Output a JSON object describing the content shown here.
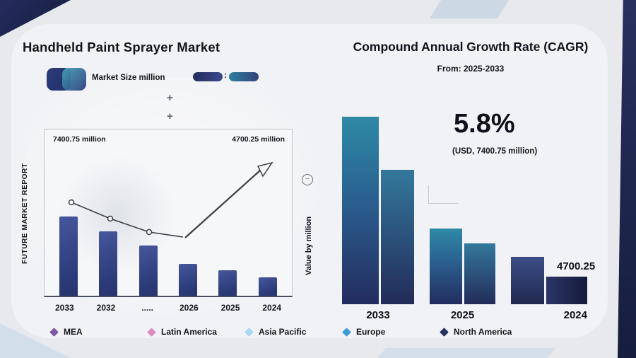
{
  "page": {
    "background": "#e7e9ed",
    "accent_navy": "#1b2350",
    "accent_teal": "#2e8aa6"
  },
  "decor": {
    "plus": "+",
    "minus": "−"
  },
  "left_section": {
    "title": "Handheld Paint Sprayer Market",
    "legend_label": "Market Size million",
    "pill_separator": ":",
    "chart": {
      "top_left_label": "7400.75 million",
      "top_right_label": "4700.25 million",
      "y_axis_label": "FUTURE MARKET REPORT"
    }
  },
  "right_section": {
    "title": "Compound Annual Growth Rate (CAGR)",
    "subtitle": "From: 2025-2033",
    "cagr_value": "5.8%",
    "cagr_note": "(USD, 7400.75 million)",
    "y_axis_label": "Value by million",
    "end_value_label": "4700.25"
  },
  "footer_legend": [
    {
      "label": "MEA",
      "color": "#7d58a6"
    },
    {
      "label": "Latin America",
      "color": "#d88ec0"
    },
    {
      "label": "Asia Pacific",
      "color": "#a6d9ef"
    },
    {
      "label": "Europe",
      "color": "#3e9bd8"
    },
    {
      "label": "North America",
      "color": "#28335f"
    }
  ],
  "chart_data": [
    {
      "type": "bar",
      "title": "Handheld Paint Sprayer Market",
      "series_label": "Market Size million",
      "categories": [
        "2033",
        "2032",
        ".....",
        "2026",
        "2025",
        "2024"
      ],
      "values": [
        7400.75,
        6750,
        6100,
        5300,
        5000,
        4700.25
      ],
      "unit": "million",
      "ylabel": "FUTURE MARKET REPORT",
      "annotations": [
        {
          "text": "7400.75 million",
          "position": "top-left"
        },
        {
          "text": "4700.25 million",
          "position": "top-right"
        }
      ],
      "trend": {
        "type": "line-with-markers-then-rising-arrow",
        "marker_categories": [
          "2033",
          "2032",
          "....."
        ]
      },
      "grid": false,
      "legend_position": "none"
    },
    {
      "type": "bar",
      "title": "Compound Annual Growth Rate (CAGR)",
      "subtitle": "From: 2025-2033",
      "cagr": "5.8%",
      "cagr_note": "(USD, 7400.75 million)",
      "categories": [
        "2033",
        "2025",
        "2024"
      ],
      "series": [
        {
          "name": "upper",
          "values": [
            7400.75,
            3000,
            1870
          ]
        },
        {
          "name": "lower",
          "values": [
            5300,
            2400,
            1100
          ]
        }
      ],
      "ylabel": "Value by million",
      "data_labels": [
        {
          "category": "2024",
          "text": "4700.25"
        }
      ],
      "grid": false
    }
  ]
}
